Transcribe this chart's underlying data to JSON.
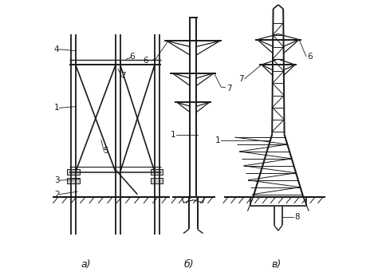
{
  "background_color": "#ffffff",
  "line_color": "#1a1a1a",
  "sublabels": {
    "a": [
      0.13,
      0.035,
      "а)"
    ],
    "b": [
      0.5,
      0.035,
      "б)"
    ],
    "v": [
      0.815,
      0.035,
      "в)"
    ]
  }
}
